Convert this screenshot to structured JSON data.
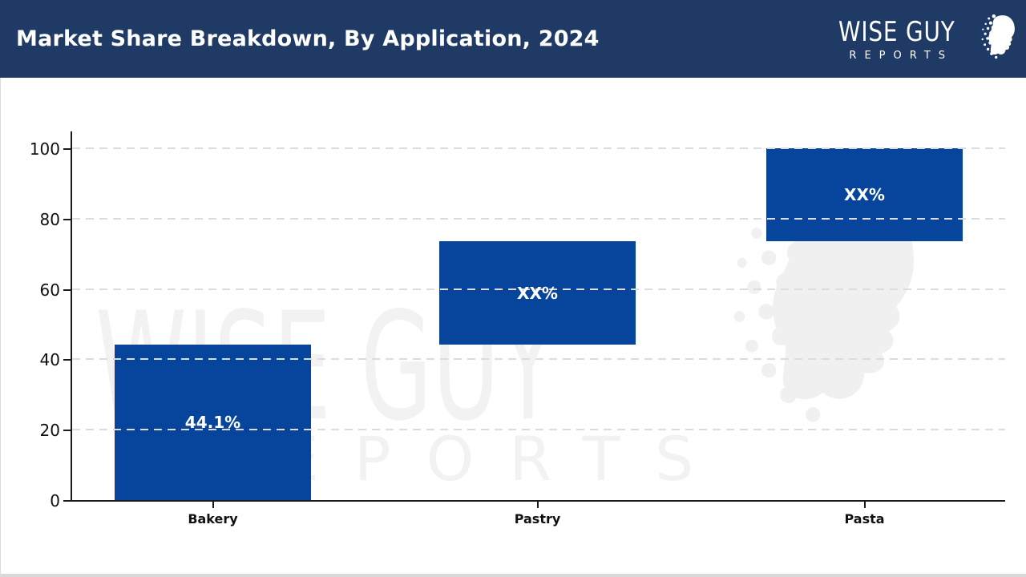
{
  "header": {
    "title": "Market Share Breakdown, By Application, 2024",
    "bg_color": "#203a66",
    "logo": {
      "wise": "WISE GUY",
      "reports": "REPORTS"
    }
  },
  "watermark": {
    "wise": "WISE GUY",
    "reports": "REPORTS"
  },
  "chart_data": {
    "type": "bar",
    "subtype": "floating-waterfall",
    "title": "Market Share Breakdown, By Application, 2024",
    "xlabel": "",
    "ylabel": "",
    "categories": [
      "Bakery",
      "Pastry",
      "Pasta"
    ],
    "segments": [
      {
        "category": "Bakery",
        "from": 0,
        "to": 44.1,
        "label": "44.1%"
      },
      {
        "category": "Pastry",
        "from": 44.1,
        "to": 73.5,
        "label": "XX%"
      },
      {
        "category": "Pasta",
        "from": 73.5,
        "to": 100,
        "label": "XX%"
      }
    ],
    "bar_labels": [
      "44.1%",
      "XX%",
      "XX%"
    ],
    "yticks": [
      0,
      20,
      40,
      60,
      80,
      100
    ],
    "ylim": [
      0,
      104
    ],
    "grid": "horizontal-dashed",
    "legend": "none",
    "bar_color": "#07459c",
    "bar_label_color": "#ffffff",
    "gridline_color": "#dcdcdc",
    "axis_color": "#1a1a1a"
  }
}
